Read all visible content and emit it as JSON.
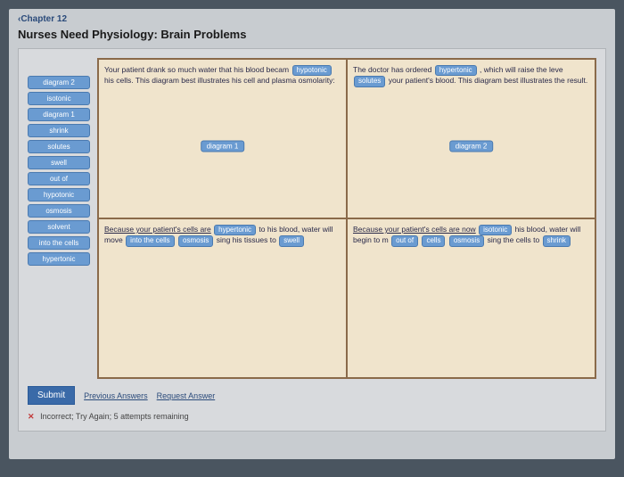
{
  "breadcrumb": "‹Chapter 12",
  "title": "Nurses Need Physiology: Brain Problems",
  "tray": {
    "chips": [
      "diagram 2",
      "isotonic",
      "diagram 1",
      "shrink",
      "solutes",
      "swell",
      "out of",
      "hypotonic",
      "osmosis",
      "solvent",
      "into the cells",
      "hypertonic"
    ]
  },
  "cells": {
    "tl": {
      "pre1": "Your patient drank so much water that his blood becam",
      "chip1": "hypotonic",
      "post1": "his cells. This diagram best illustrates his cell and plasma osmolarity:",
      "dropped": "diagram 1"
    },
    "tr": {
      "pre1": "The doctor has ordered",
      "chip1": "hypertonic",
      "mid1": ", which will raise the leve",
      "chip2": "solutes",
      "post1": "your patient's blood. This diagram best illustrates the result.",
      "dropped": "diagram 2"
    },
    "bl": {
      "lead": "Because your patient's cells are",
      "chip1": "hypertonic",
      "t2": "to his blood, water will move",
      "chip2": "into the cells",
      "chip3": "osmosis",
      "t3": "sing his tissues to",
      "chip4": "swell"
    },
    "br": {
      "lead": "Because your patient's cells are now",
      "chip1": "isotonic",
      "t2": "his blood, water will begin to m",
      "chip2": "out of",
      "chip3": "cells",
      "chip4": "osmosis",
      "t3": "sing the cells to",
      "chip5": "shrink"
    }
  },
  "footer": {
    "submit": "Submit",
    "prev": "Previous Answers",
    "req": "Request Answer",
    "feedback": "Incorrect; Try Again; 5 attempts remaining"
  }
}
